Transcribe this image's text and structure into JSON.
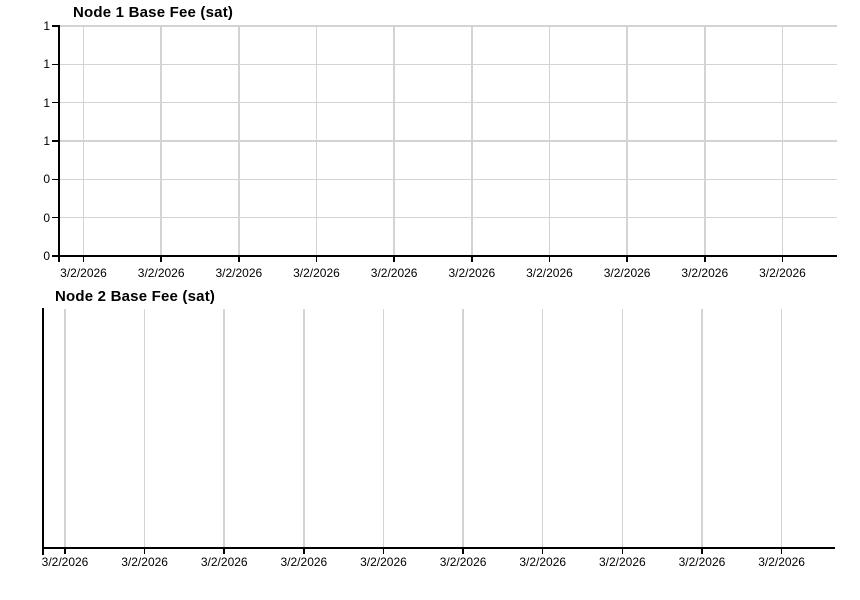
{
  "page": {
    "background": "#ffffff"
  },
  "colors": {
    "gridline": "#d3d3d3",
    "axis": "#000000",
    "text": "#000000"
  },
  "chart_data": [
    {
      "type": "line",
      "title": "Node 1 Base Fee (sat)",
      "x_tick_labels": [
        "3/2/2026",
        "3/2/2026",
        "3/2/2026",
        "3/2/2026",
        "3/2/2026",
        "3/2/2026",
        "3/2/2026",
        "3/2/2026",
        "3/2/2026",
        "3/2/2026"
      ],
      "y_tick_labels_top_to_bottom": [
        "1",
        "1",
        "1",
        "1",
        "0",
        "0",
        "0"
      ],
      "series": [],
      "grid": {
        "horizontal": true,
        "vertical": true
      },
      "legend": false
    },
    {
      "type": "line",
      "title": "Node 2 Base Fee (sat)",
      "x_tick_labels": [
        "3/2/2026",
        "3/2/2026",
        "3/2/2026",
        "3/2/2026",
        "3/2/2026",
        "3/2/2026",
        "3/2/2026",
        "3/2/2026",
        "3/2/2026",
        "3/2/2026"
      ],
      "y_tick_labels_top_to_bottom": [],
      "series": [],
      "grid": {
        "horizontal": false,
        "vertical": true
      },
      "legend": false
    }
  ]
}
